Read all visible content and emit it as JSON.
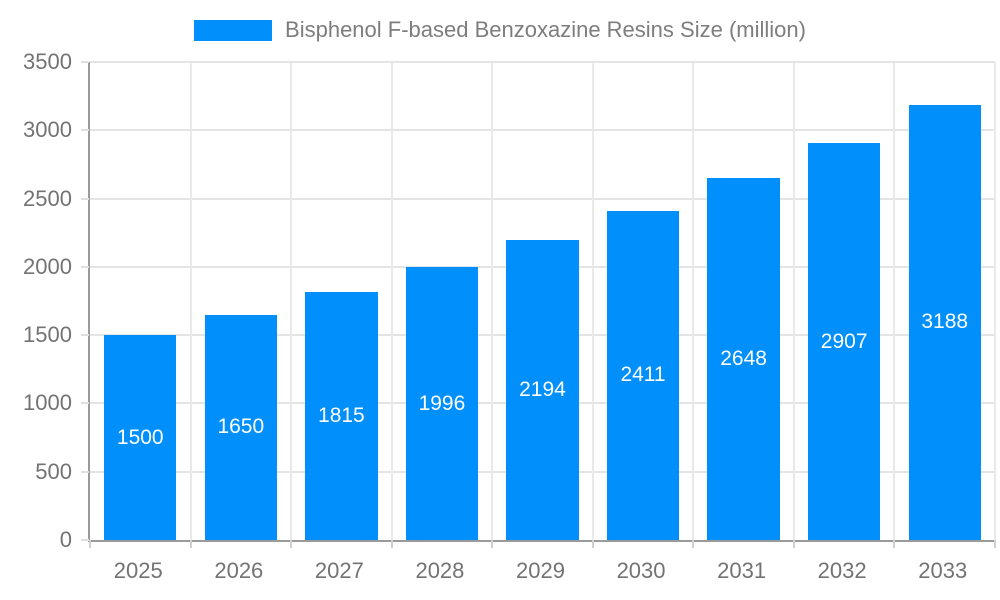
{
  "legend": {
    "position": "top"
  },
  "chart_data": {
    "type": "bar",
    "categories": [
      "2025",
      "2026",
      "2027",
      "2028",
      "2029",
      "2030",
      "2031",
      "2032",
      "2033"
    ],
    "series": [
      {
        "name": "Bisphenol F-based Benzoxazine Resins Size (million)",
        "values": [
          1500,
          1650,
          1815,
          1996,
          2194,
          2411,
          2648,
          2907,
          3188
        ]
      }
    ],
    "title": "",
    "xlabel": "",
    "ylabel": "",
    "ylim": [
      0,
      3500
    ],
    "y_ticks": [
      0,
      500,
      1000,
      1500,
      2000,
      2500,
      3000,
      3500
    ],
    "grid": true,
    "legend_position": "top",
    "value_labels": "inside-center",
    "colors": {
      "bar": "#008FFB",
      "value_label": "#ffffff",
      "gridline": "#e4e4e4",
      "axis_line": "#9a9a9a",
      "tick": "#cfcfcf",
      "axis_text": "#737373",
      "legend_text": "#7d7d7d",
      "background": "#ffffff"
    }
  }
}
